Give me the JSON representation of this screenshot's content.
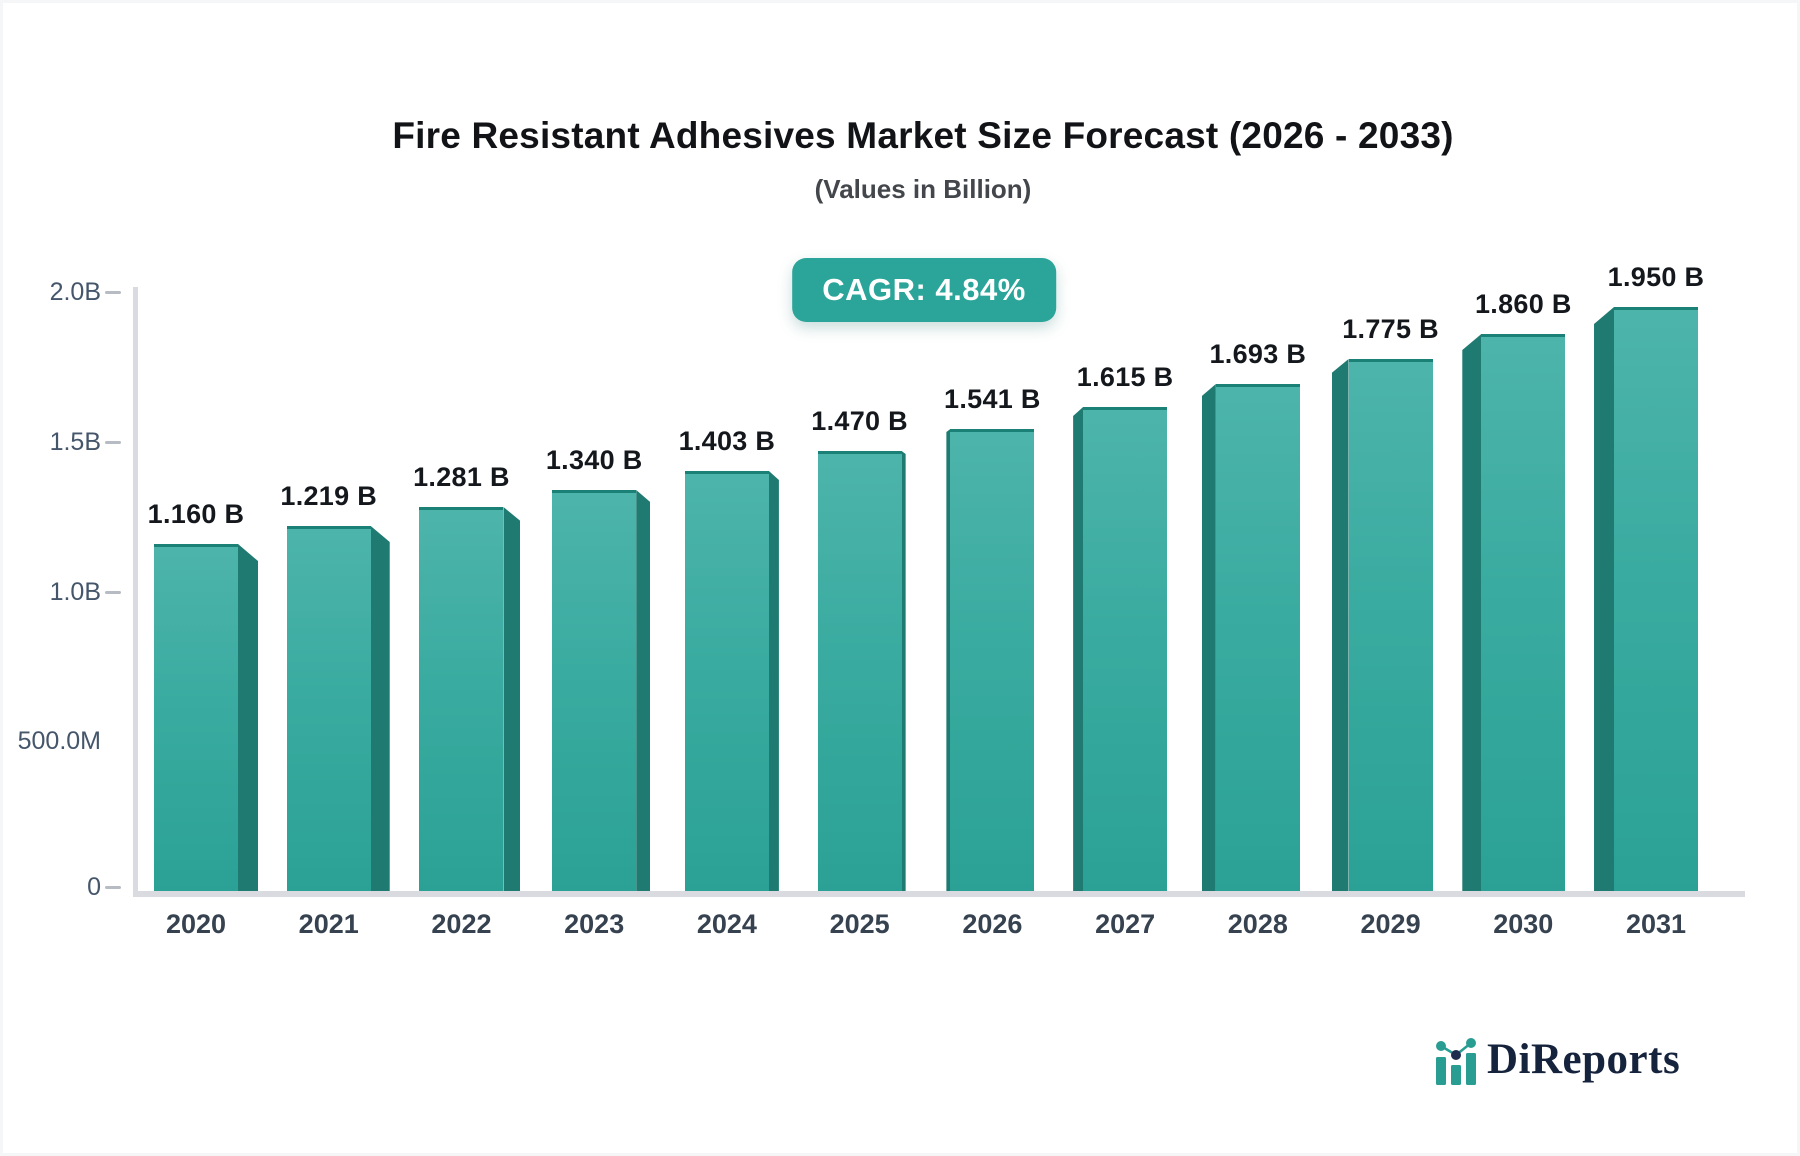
{
  "chart_data": {
    "type": "bar",
    "title": "Fire Resistant Adhesives Market Size Forecast (2026 - 2033)",
    "subtitle": "(Values in Billion)",
    "badge": "CAGR: 4.84%",
    "categories": [
      "2020",
      "2021",
      "2022",
      "2023",
      "2024",
      "2025",
      "2026",
      "2027",
      "2028",
      "2029",
      "2030",
      "2031"
    ],
    "values": [
      1.16,
      1.219,
      1.281,
      1.34,
      1.403,
      1.47,
      1.541,
      1.615,
      1.693,
      1.775,
      1.86,
      1.95
    ],
    "value_labels": [
      "1.160 B",
      "1.219 B",
      "1.281 B",
      "1.340 B",
      "1.403 B",
      "1.470 B",
      "1.541 B",
      "1.615 B",
      "1.693 B",
      "1.775 B",
      "1.860 B",
      "1.950 B"
    ],
    "xlabel": "",
    "ylabel": "",
    "ylim": [
      0,
      2.0
    ],
    "grid": false,
    "legend": false,
    "y_axis": [
      {
        "label": "2.0B",
        "value": 2.0,
        "tick": true
      },
      {
        "label": "1.5B",
        "value": 1.5,
        "tick": true
      },
      {
        "label": "1.0B",
        "value": 1.0,
        "tick": true
      },
      {
        "label": "500.0M",
        "value": 0.5,
        "tick": false
      },
      {
        "label": "0",
        "value": 0.0,
        "tick": true
      }
    ]
  },
  "branding": {
    "name": "DiReports",
    "icon": "bar-chart-logo-icon"
  },
  "colors": {
    "badge_bg": "#2ba59a",
    "bar_face_top": "#4db4ab",
    "bar_face_bottom": "#2ba195",
    "bar_top_edge": "#1b8076",
    "bar_side": "#1f7b72",
    "axis_line": "#d9dbe1",
    "tick": "#b7bcc4",
    "value_label_text": "#14181d",
    "x_label_text": "#36424f",
    "y_label_text": "#45566b",
    "title_text": "#111317",
    "subtitle_text": "#43474c",
    "logo_navy": "#16233c",
    "logo_teal": "#2a9d93"
  }
}
